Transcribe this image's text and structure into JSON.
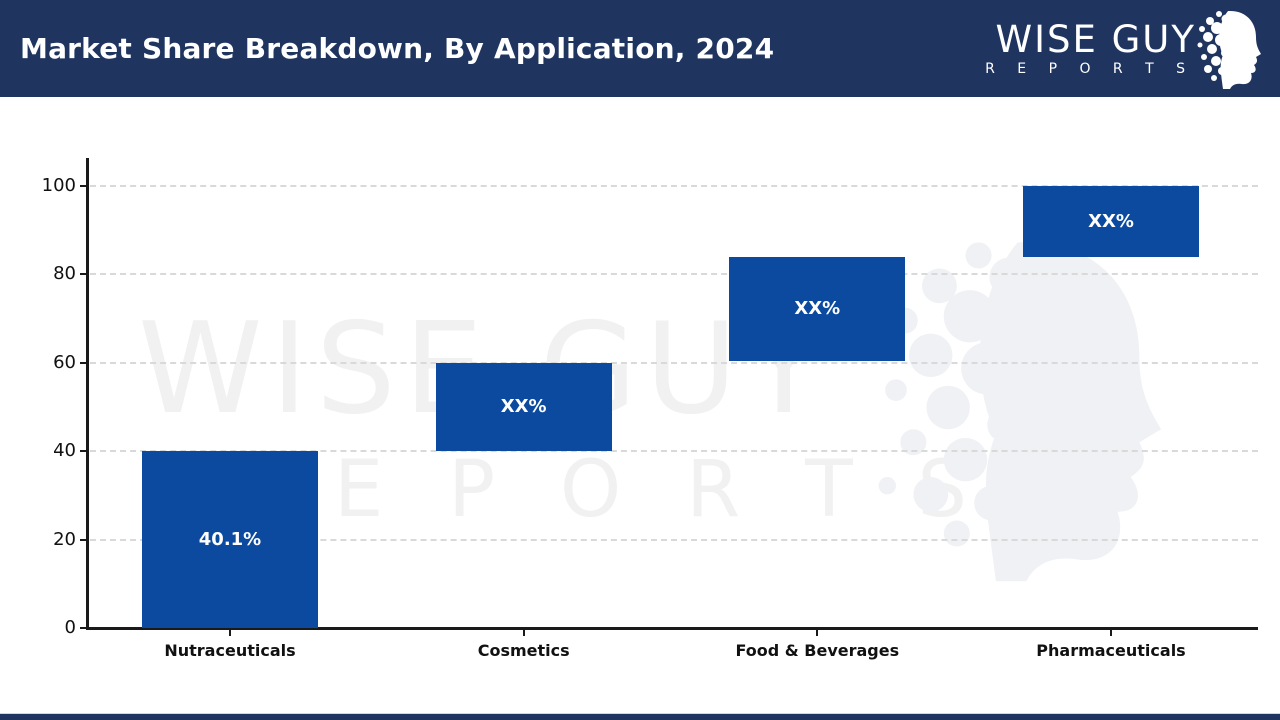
{
  "header": {
    "title": "Market Share Breakdown, By Application, 2024",
    "logo_line1": "WISE GUY",
    "logo_line2": "R E P O R T S"
  },
  "watermark": {
    "line1": "WISE GUY",
    "line2": "R E P O R T S"
  },
  "chart_data": {
    "type": "bar",
    "subtype": "waterfall",
    "title": "Market Share Breakdown, By Application, 2024",
    "categories": [
      "Nutraceuticals",
      "Cosmetics",
      "Food & Beverages",
      "Pharmaceuticals"
    ],
    "bars": [
      {
        "category": "Nutraceuticals",
        "start": 0,
        "end": 40.1,
        "label": "40.1%"
      },
      {
        "category": "Cosmetics",
        "start": 40,
        "end": 60,
        "label": "XX%"
      },
      {
        "category": "Food & Beverages",
        "start": 60.5,
        "end": 83.9,
        "label": "XX%"
      },
      {
        "category": "Pharmaceuticals",
        "start": 83.9,
        "end": 100,
        "label": "XX%"
      }
    ],
    "yticks": [
      0,
      20,
      40,
      60,
      80,
      100
    ],
    "ylim": [
      0,
      100
    ],
    "xlabel": "",
    "ylabel": "",
    "legend": "none",
    "grid": "horizontal-dashed",
    "colors": {
      "bar": "#0B4A9F",
      "header_bg": "#1F3560",
      "gridline": "#d9d9d9",
      "axis": "#1a1a1a",
      "bar_label_text": "#ffffff",
      "watermark": "#f1f1f2"
    }
  }
}
